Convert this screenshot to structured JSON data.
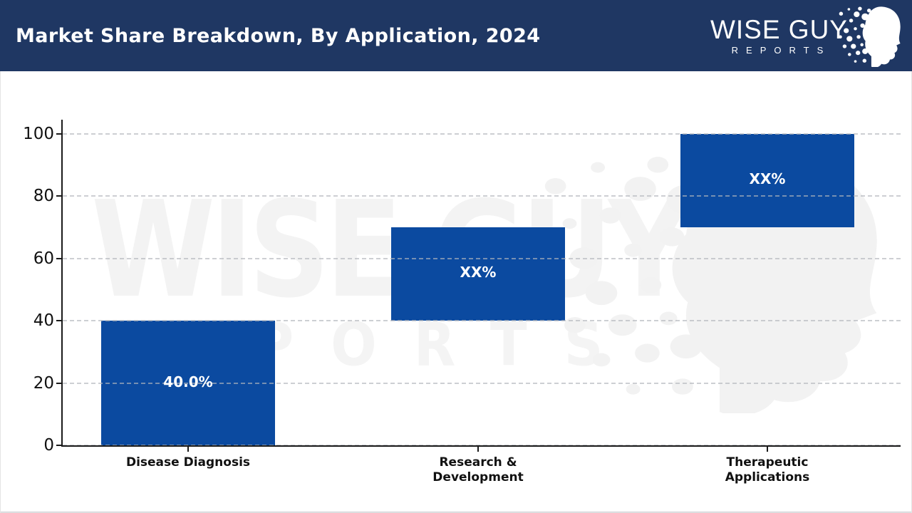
{
  "header": {
    "title": "Market Share Breakdown, By Application, 2024",
    "logo": {
      "name_top": "WISE GUY",
      "name_bottom": "REPORTS"
    }
  },
  "watermark": {
    "text_top": "WISE GUY",
    "text_bottom": "REPORTS"
  },
  "chart_data": {
    "type": "bar",
    "variant": "floating-segment-waterfall",
    "title": "Market Share Breakdown, By Application, 2024",
    "categories": [
      "Disease Diagnosis",
      "Research & Development",
      "Therapeutic Applications"
    ],
    "category_label_lines": [
      [
        "Disease Diagnosis"
      ],
      [
        "Research &",
        "Development"
      ],
      [
        "Therapeutic",
        "Applications"
      ]
    ],
    "series": [
      {
        "name": "Disease Diagnosis",
        "start": 0,
        "end": 40,
        "label": "40.0%"
      },
      {
        "name": "Research & Development",
        "start": 40,
        "end": 70,
        "label": "XX%"
      },
      {
        "name": "Therapeutic Applications",
        "start": 70,
        "end": 100,
        "label": "XX%"
      }
    ],
    "ylim": [
      0,
      100
    ],
    "yticks": [
      0,
      20,
      40,
      60,
      80,
      100
    ],
    "grid": "horizontal-dashed",
    "legend": "none",
    "colors": {
      "bar": "#0b4aa0",
      "bar_label": "#ffffff",
      "axis": "#1a1a1a",
      "gridline": "#d9d9d9",
      "header_bg": "#1f3763",
      "watermark": "#f3f3f3"
    }
  }
}
